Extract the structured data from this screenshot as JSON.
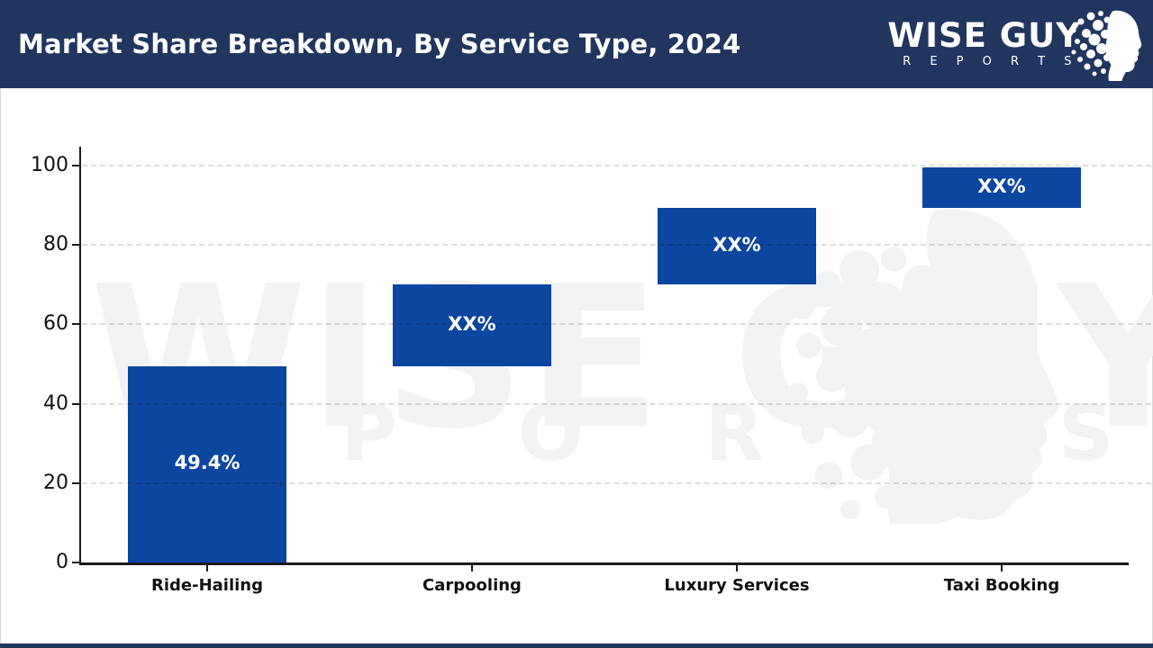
{
  "header": {
    "title": "Market Share Breakdown, By Service Type, 2024",
    "logo": {
      "line1": "WISE GUY",
      "line2": "R E P O R T S"
    }
  },
  "watermark": {
    "line1": "WISE GUY",
    "line2": "P O R T S"
  },
  "colors": {
    "header_bg": "#21365f",
    "bar": "#0c46a0",
    "bar_label": "#ffffff",
    "axis": "#1a1a1a",
    "gridline": "#dcdcdc",
    "watermark": "#f2f3f5"
  },
  "chart_data": {
    "type": "bar",
    "subtype": "waterfall-stacked-percentage",
    "title": "Market Share Breakdown, By Service Type, 2024",
    "categories": [
      "Ride-Hailing",
      "Carpooling",
      "Luxury Services",
      "Taxi Booking"
    ],
    "segments": [
      {
        "category": "Ride-Hailing",
        "start": 0,
        "end": 49.4,
        "label": "49.4%"
      },
      {
        "category": "Carpooling",
        "start": 49.4,
        "end": 70.0,
        "label": "XX%"
      },
      {
        "category": "Luxury Services",
        "start": 70.0,
        "end": 89.3,
        "label": "XX%"
      },
      {
        "category": "Taxi Booking",
        "start": 89.3,
        "end": 99.5,
        "label": "XX%"
      }
    ],
    "y_ticks": [
      0,
      20,
      40,
      60,
      80,
      100
    ],
    "ylim": [
      0,
      105
    ],
    "xlabel": "",
    "ylabel": "",
    "grid": "horizontal-dashed",
    "legend": "none"
  }
}
